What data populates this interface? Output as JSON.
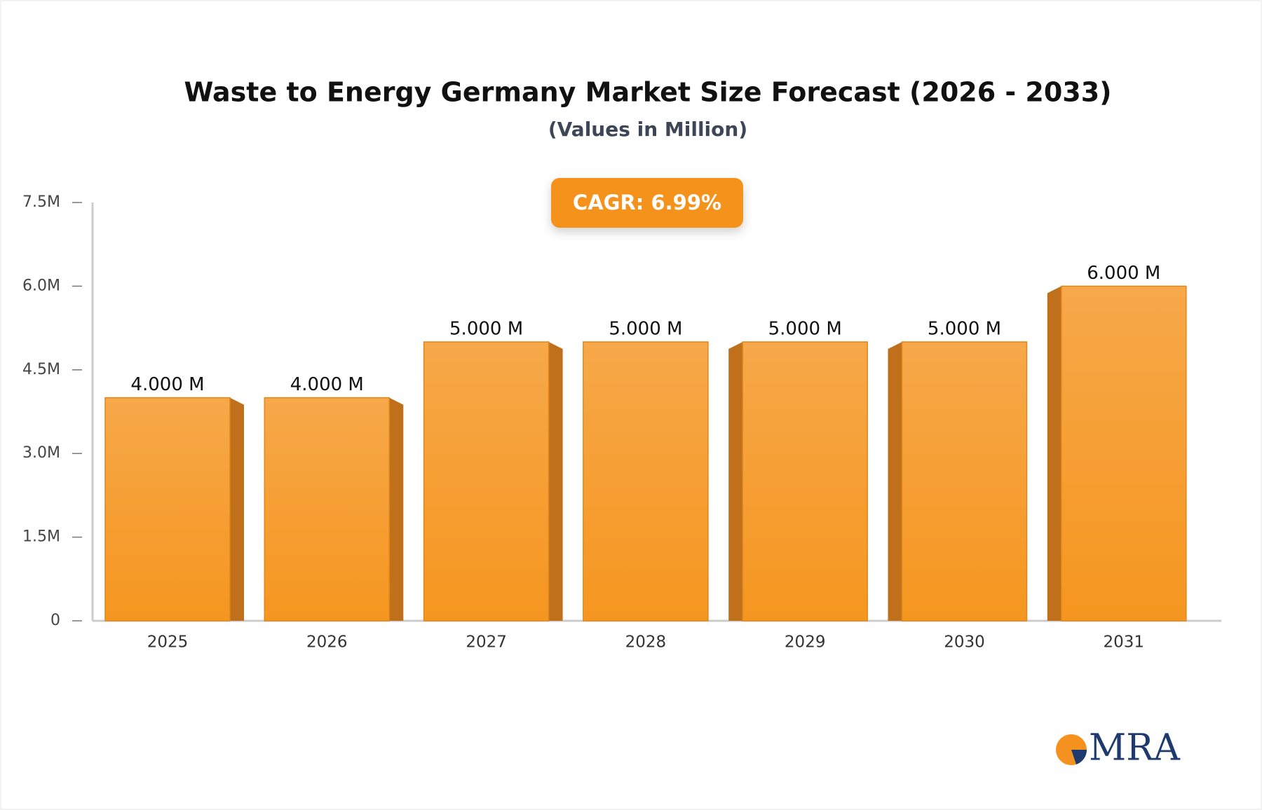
{
  "chart_data": {
    "type": "bar",
    "title": "Waste to Energy Germany Market Size Forecast (2026 - 2033)",
    "subtitle": "(Values in Million)",
    "annotation": "CAGR: 6.99%",
    "logo": "MRA",
    "categories": [
      "2025",
      "2026",
      "2027",
      "2028",
      "2029",
      "2030",
      "2031"
    ],
    "values": [
      4,
      4,
      5,
      5,
      5,
      5,
      6
    ],
    "value_labels": [
      "4.000 M",
      "4.000 M",
      "5.000 M",
      "5.000 M",
      "5.000 M",
      "5.000 M",
      "6.000 M"
    ],
    "color": "#f5961f",
    "ylim": [
      0,
      7.5
    ],
    "yticks": [
      0,
      {
        "value": 1.5,
        "label": "1.5M"
      },
      {
        "value": 3,
        "label": "3.0M"
      },
      {
        "value": 4.5,
        "label": "4.5M"
      },
      {
        "value": 6,
        "label": "6.0M"
      },
      {
        "value": 7.5,
        "label": "7.5M"
      }
    ]
  }
}
